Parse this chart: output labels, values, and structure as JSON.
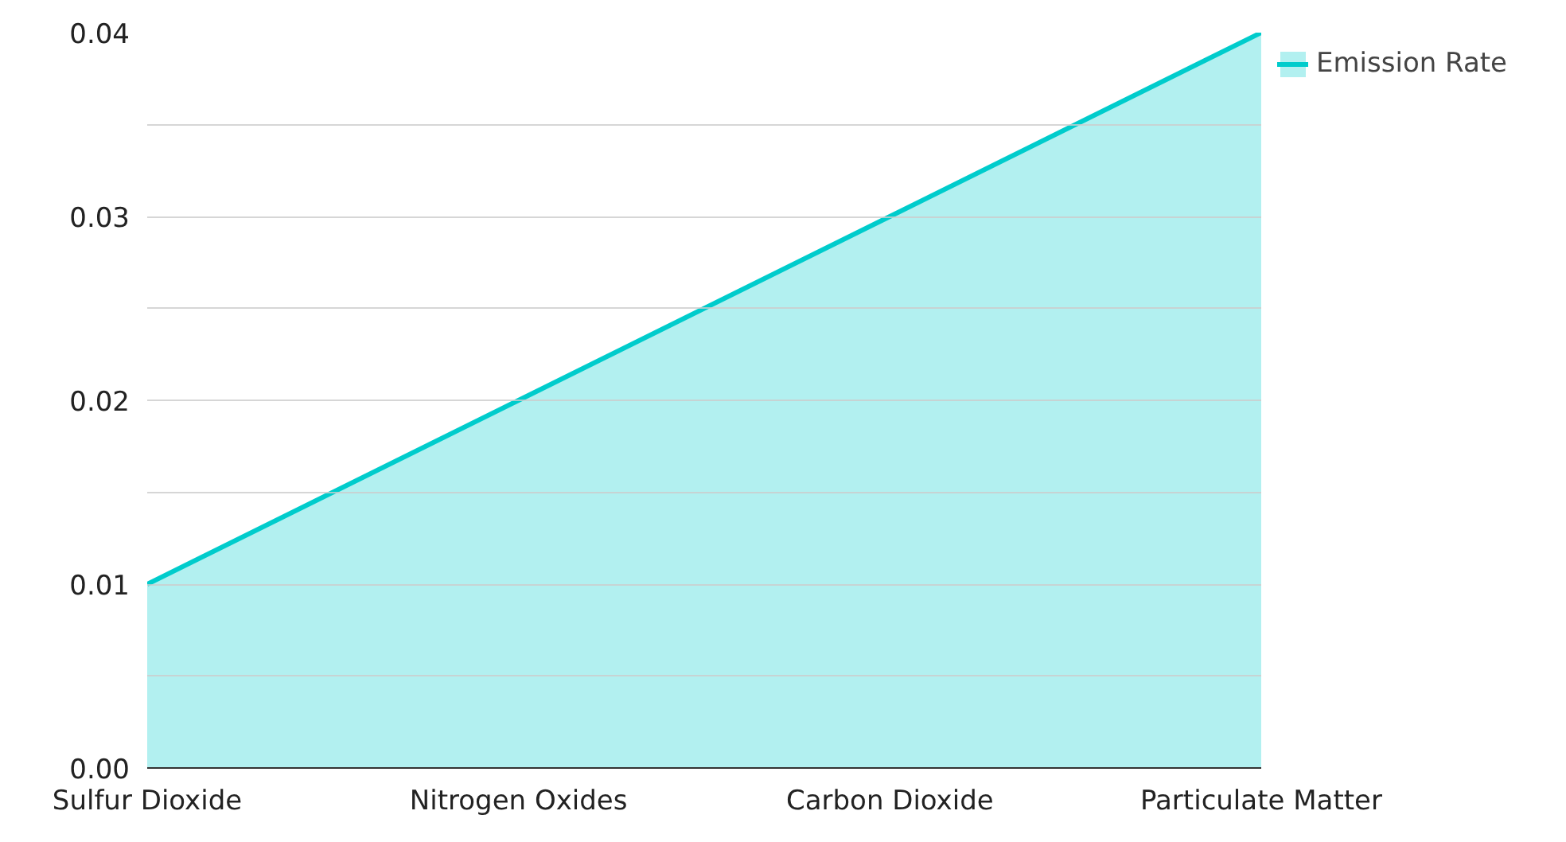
{
  "chart_data": {
    "type": "area",
    "categories": [
      "Sulfur Dioxide",
      "Nitrogen Oxides",
      "Carbon Dioxide",
      "Particulate Matter"
    ],
    "series": [
      {
        "name": "Emission Rate",
        "color": "#00cccc",
        "values": [
          0.01,
          0.02,
          0.03,
          0.04
        ]
      }
    ],
    "ylim": [
      0,
      0.04
    ],
    "yticks": [
      {
        "value": 0,
        "label": "0.00"
      },
      {
        "value": 0.005,
        "label": null
      },
      0.01,
      {
        "value": 0.015,
        "label": null
      },
      0.02,
      {
        "value": 0.025,
        "label": null
      },
      0.03,
      {
        "value": 0.035,
        "label": null
      },
      0.04
    ],
    "grid": "y",
    "legend": "top right"
  }
}
